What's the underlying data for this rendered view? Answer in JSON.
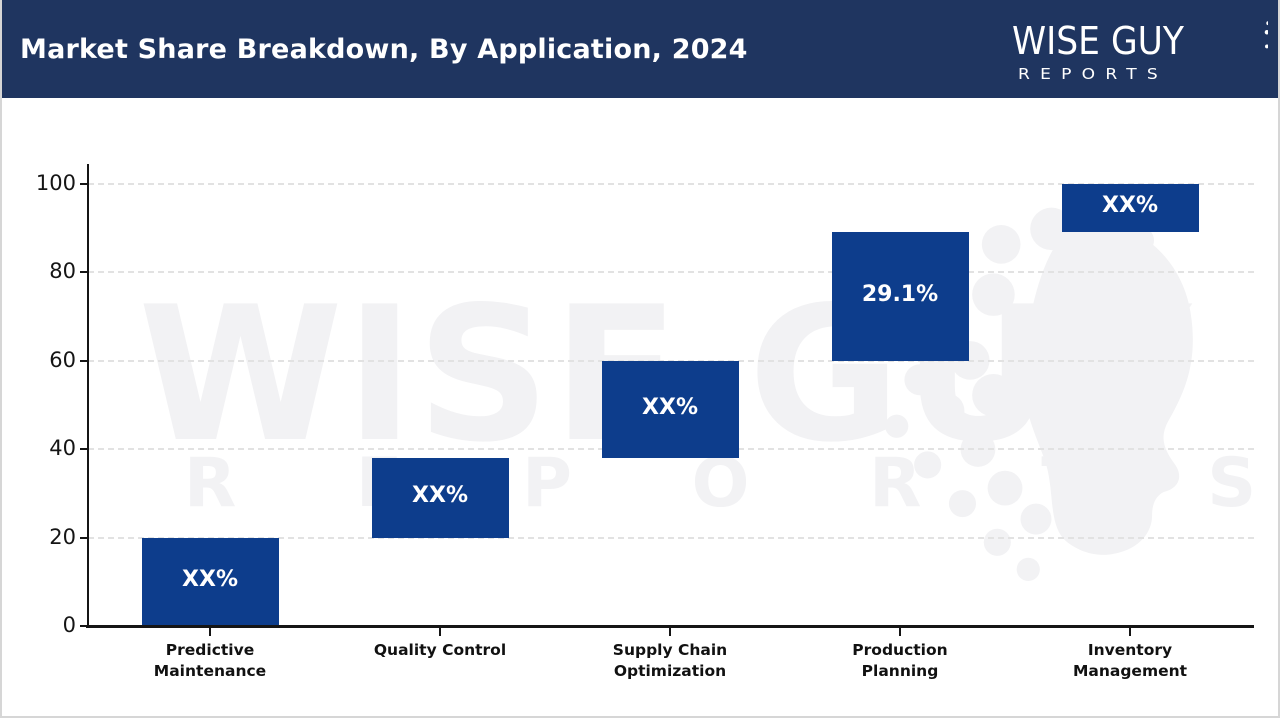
{
  "header": {
    "title": "Market Share Breakdown, By Application, 2024",
    "logo": {
      "wordmark": "WISE GUY",
      "tagline": "REPORTS",
      "face_icon": "dotted-head-profile-icon"
    }
  },
  "watermark": {
    "line1": "WISE GUY",
    "line2": "R E P O R T S",
    "face_icon": "dotted-head-profile-watermark"
  },
  "chart_data": {
    "type": "bar",
    "subtype": "waterfall",
    "title": "Market Share Breakdown, By Application, 2024",
    "categories": [
      [
        "Predictive",
        "Maintenance"
      ],
      [
        "Quality Control"
      ],
      [
        "Supply Chain",
        "Optimization"
      ],
      [
        "Production",
        "Planning"
      ],
      [
        "Inventory",
        "Management"
      ]
    ],
    "bars": [
      {
        "category": "Predictive Maintenance",
        "start": 0,
        "end": 20,
        "label": "XX%"
      },
      {
        "category": "Quality Control",
        "start": 20,
        "end": 38,
        "label": "XX%"
      },
      {
        "category": "Supply Chain Optimization",
        "start": 38,
        "end": 60,
        "label": "XX%"
      },
      {
        "category": "Production Planning",
        "start": 60,
        "end": 89.1,
        "label": "29.1%"
      },
      {
        "category": "Inventory Management",
        "start": 89.1,
        "end": 100,
        "label": "XX%"
      }
    ],
    "y_ticks": [
      0,
      20,
      40,
      60,
      80,
      100
    ],
    "ylim": [
      0,
      104
    ],
    "xlabel": "",
    "ylabel": "",
    "grid": "horizontal-dashed",
    "legend": "none",
    "bar_color": "#0d3d8c",
    "bar_label_color": "#ffffff"
  },
  "colors": {
    "header_bg": "#1f3560",
    "bar": "#0d3d8c",
    "grid": "#e2e2e2",
    "axis": "#151515",
    "watermark": "#f2f2f4",
    "page_border": "#d6d6d6",
    "title_text": "#ffffff"
  }
}
